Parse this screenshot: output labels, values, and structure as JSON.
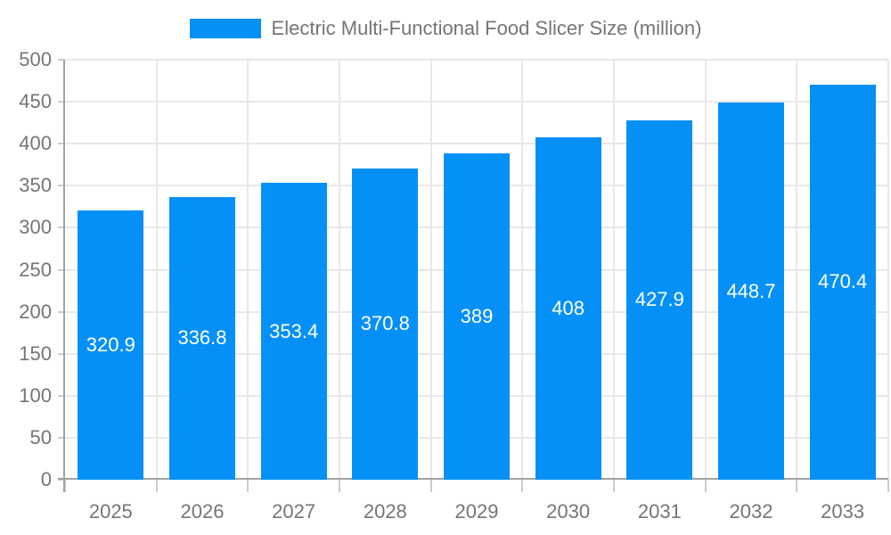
{
  "chart_data": {
    "type": "bar",
    "title": "Electric Multi-Functional Food Slicer Size (million)",
    "categories": [
      "2025",
      "2026",
      "2027",
      "2028",
      "2029",
      "2030",
      "2031",
      "2032",
      "2033"
    ],
    "values": [
      320.9,
      336.8,
      353.4,
      370.8,
      389,
      408,
      427.9,
      448.7,
      470.4
    ],
    "value_labels": [
      "320.9",
      "336.8",
      "353.4",
      "370.8",
      "389",
      "408",
      "427.9",
      "448.7",
      "470.4"
    ],
    "series_name": "Electric Multi-Functional Food Slicer Size (million)",
    "xlabel": "",
    "ylabel": "",
    "ylim": [
      0,
      500
    ],
    "yticks": [
      0,
      50,
      100,
      150,
      200,
      250,
      300,
      350,
      400,
      450,
      500
    ],
    "grid": "horizontal and vertical category boundaries",
    "legend_position": "top-center",
    "value_label_position": "inside-middle",
    "colors": {
      "bar": "#0590F8",
      "value_text": "#ffffff",
      "axis_text": "#757575",
      "axis_line": "#a3a3a3",
      "gridline": "#e8e8e8",
      "tick": "#cccccc",
      "background": "#ffffff"
    }
  }
}
